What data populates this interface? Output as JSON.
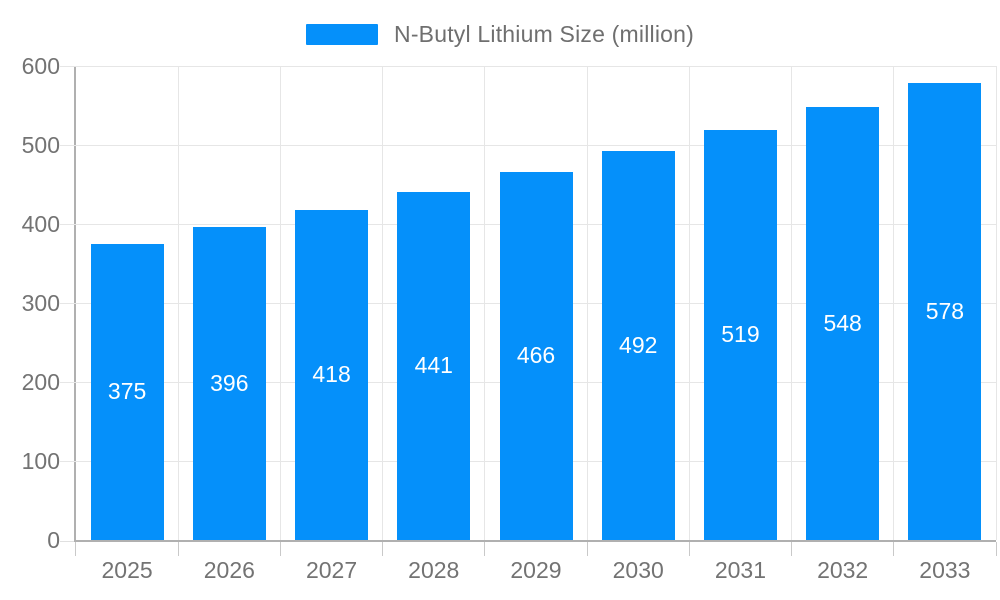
{
  "legend": {
    "label": "N-Butyl Lithium Size (million)"
  },
  "colors": {
    "bar": "#0590fa",
    "grid": "#e6e6e6",
    "axis": "#b0b0b0",
    "tick": "#c9c9c9",
    "axis_text": "#737373",
    "bar_label_text": "#ffffff",
    "background": "#ffffff"
  },
  "chart_data": {
    "type": "bar",
    "title": "N-Butyl Lithium Size (million)",
    "categories": [
      "2025",
      "2026",
      "2027",
      "2028",
      "2029",
      "2030",
      "2031",
      "2032",
      "2033"
    ],
    "values": [
      375,
      396,
      418,
      441,
      466,
      492,
      519,
      548,
      578
    ],
    "xlabel": "",
    "ylabel": "",
    "ylim": [
      0,
      600
    ],
    "yticks": [
      0,
      100,
      200,
      300,
      400,
      500,
      600
    ],
    "grid": true,
    "bar_labels": true,
    "legend_position": "top"
  }
}
